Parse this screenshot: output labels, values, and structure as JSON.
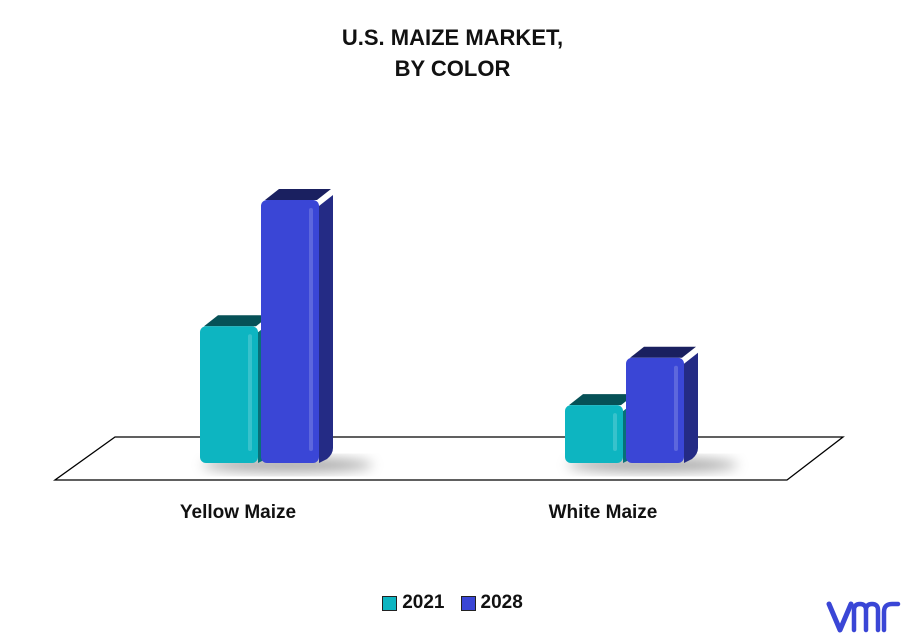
{
  "chart_data": {
    "type": "bar",
    "title_lines": [
      "U.S. MAIZE MARKET,",
      "BY COLOR"
    ],
    "categories": [
      "Yellow Maize",
      "White Maize"
    ],
    "series": [
      {
        "name": "2021",
        "values": [
          52,
          22
        ],
        "color": "#0db5c1"
      },
      {
        "name": "2028",
        "values": [
          100,
          40
        ],
        "color": "#3a46d6"
      }
    ],
    "ylim": [
      0,
      100
    ],
    "grid": false,
    "legend_position": "bottom",
    "style": "3d"
  },
  "logo": {
    "icon": "vmr-logo-icon",
    "color": "#3a46d6"
  }
}
